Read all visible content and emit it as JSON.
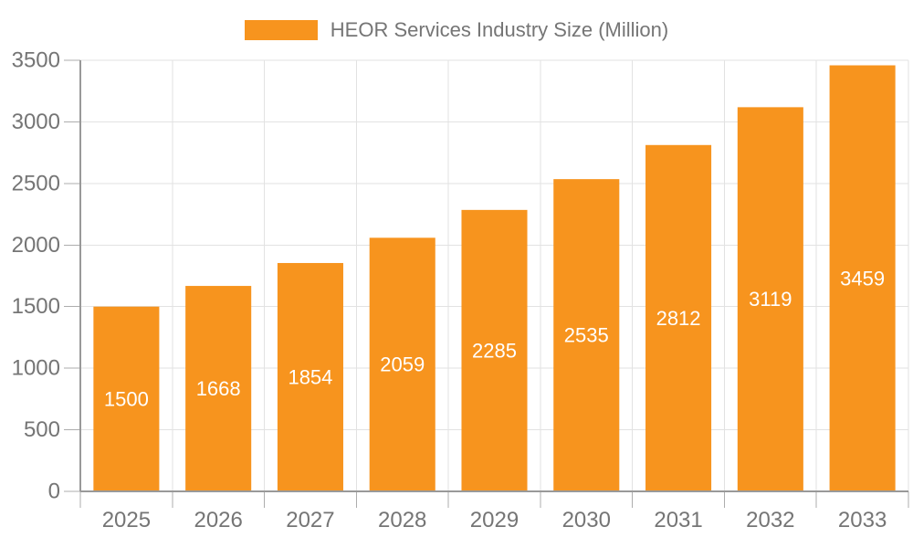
{
  "chart_data": {
    "type": "bar",
    "title": "",
    "xlabel": "",
    "ylabel": "",
    "categories": [
      "2025",
      "2026",
      "2027",
      "2028",
      "2029",
      "2030",
      "2031",
      "2032",
      "2033"
    ],
    "series": [
      {
        "name": "HEOR Services Industry Size (Million)",
        "values": [
          1500,
          1668,
          1854,
          2059,
          2285,
          2535,
          2812,
          3119,
          3459
        ]
      }
    ],
    "ylim": [
      0,
      3500
    ],
    "yticks": [
      0,
      500,
      1000,
      1500,
      2000,
      2500,
      3000,
      3500
    ],
    "grid": true,
    "legend_position": "top-center",
    "bar_label_position": "inside-middle",
    "colors": {
      "bar": "#f7941e",
      "axis_line": "#999999",
      "grid": "#e2e2e2",
      "tick": "#adadad",
      "axis_text": "#757575",
      "bar_label": "#ffffff",
      "background": "#ffffff"
    }
  },
  "legend": {
    "label": "HEOR Services Industry Size (Million)"
  }
}
